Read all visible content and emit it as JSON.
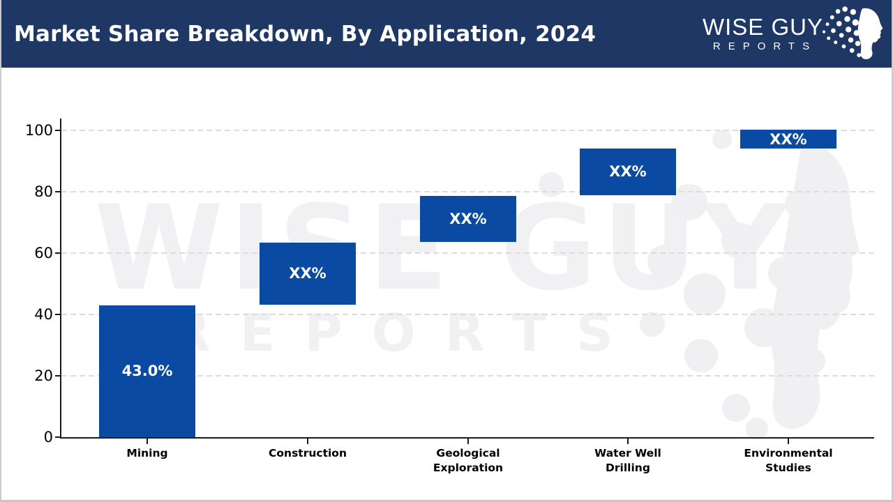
{
  "header": {
    "title": "Market Share Breakdown, By Application, 2024",
    "logo": {
      "brand": "WISE GUY",
      "sub": "REPORTS"
    }
  },
  "watermark": {
    "brand": "WISE GUY",
    "sub": "REPORTS"
  },
  "colors": {
    "header_bg": "#1f3765",
    "bar": "#0b4aa2",
    "grid": "#dcdcdc",
    "axis": "#1a1a1a",
    "bar_label": "#ffffff",
    "watermark": "#f1f1f3"
  },
  "chart_data": {
    "type": "bar",
    "subtype": "waterfall",
    "title": "Market Share Breakdown, By Application, 2024",
    "categories": [
      "Mining",
      "Construction",
      "Geological Exploration",
      "Water Well Drilling",
      "Environmental Studies"
    ],
    "segments": [
      {
        "category": "Mining",
        "start": 0,
        "end": 43.0,
        "value_label": "43.0%"
      },
      {
        "category": "Construction",
        "start": 43.2,
        "end": 63.4,
        "value_label": "XX%"
      },
      {
        "category": "Geological Exploration",
        "start": 63.6,
        "end": 78.6,
        "value_label": "XX%"
      },
      {
        "category": "Water Well Drilling",
        "start": 78.9,
        "end": 94.1,
        "value_label": "XX%"
      },
      {
        "category": "Environmental Studies",
        "start": 94.1,
        "end": 100.2,
        "value_label": "XX%"
      }
    ],
    "xlabel": "",
    "ylabel": "",
    "ylim": [
      0,
      105
    ],
    "yticks": [
      0,
      20,
      40,
      60,
      80,
      100
    ],
    "grid": "horizontal-dashed",
    "legend": null
  }
}
